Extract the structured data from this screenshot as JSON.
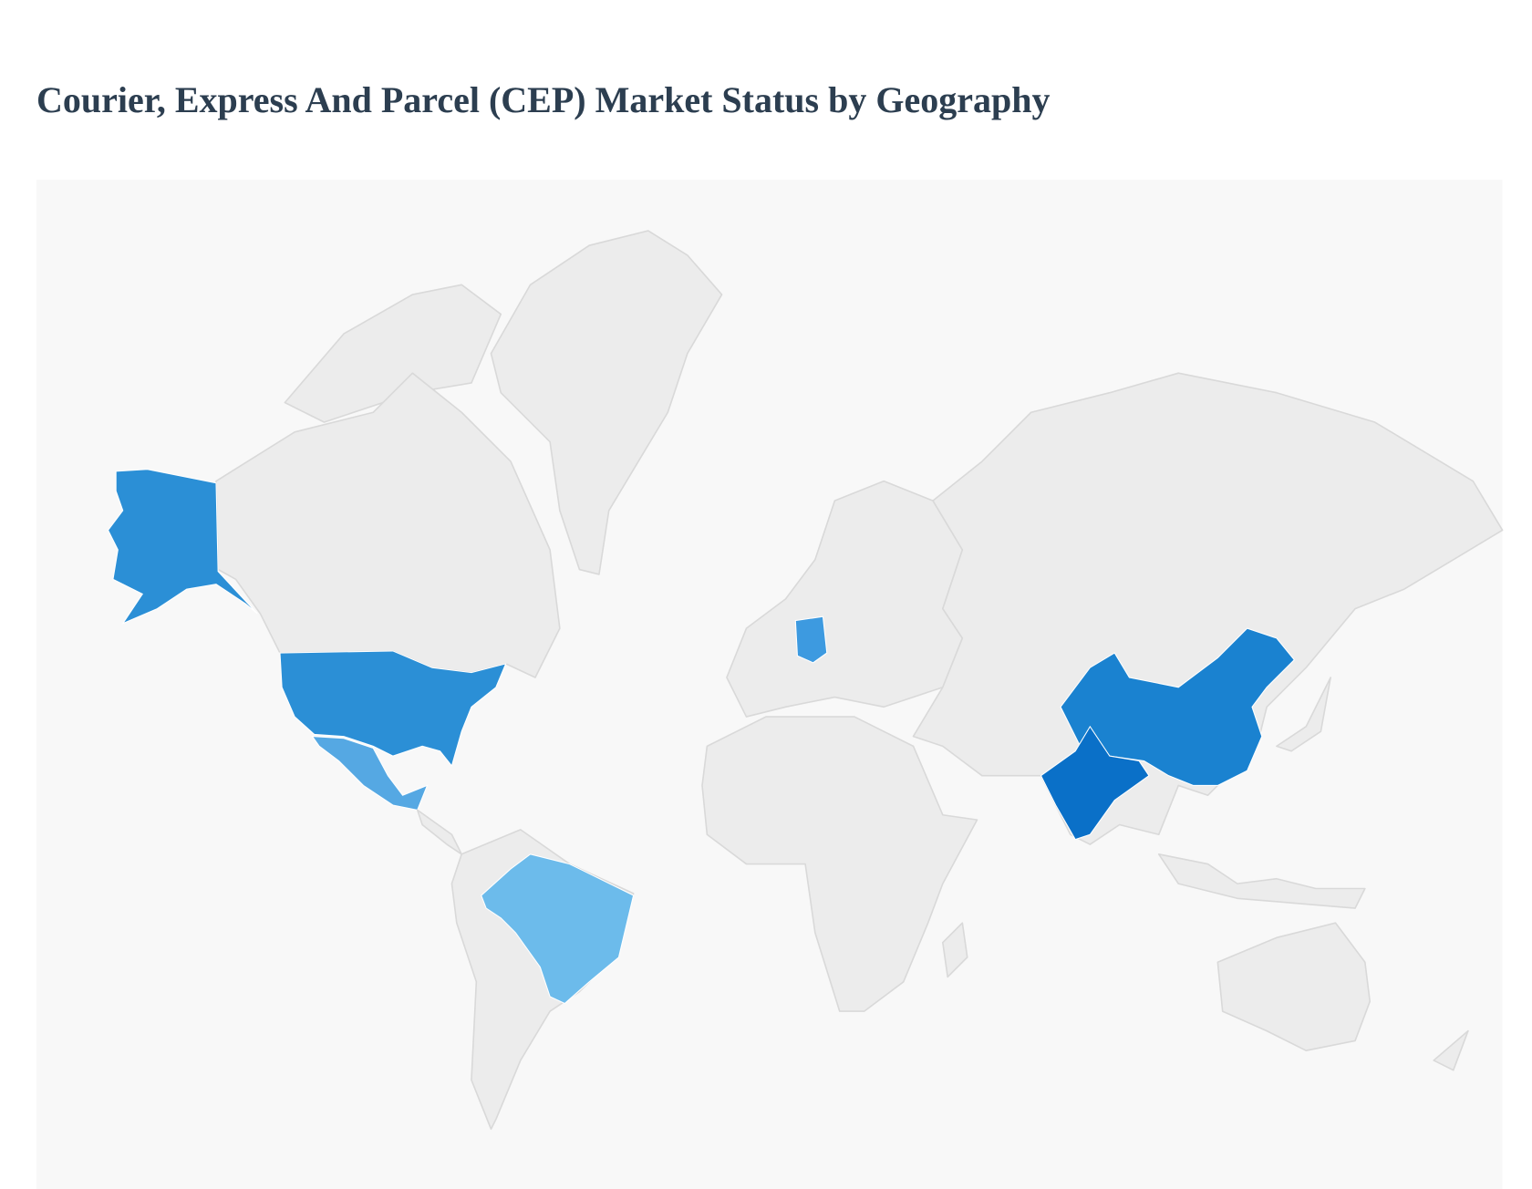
{
  "header": {
    "title": "Courier, Express And Parcel (CEP) Market Status by Geography"
  }
}
